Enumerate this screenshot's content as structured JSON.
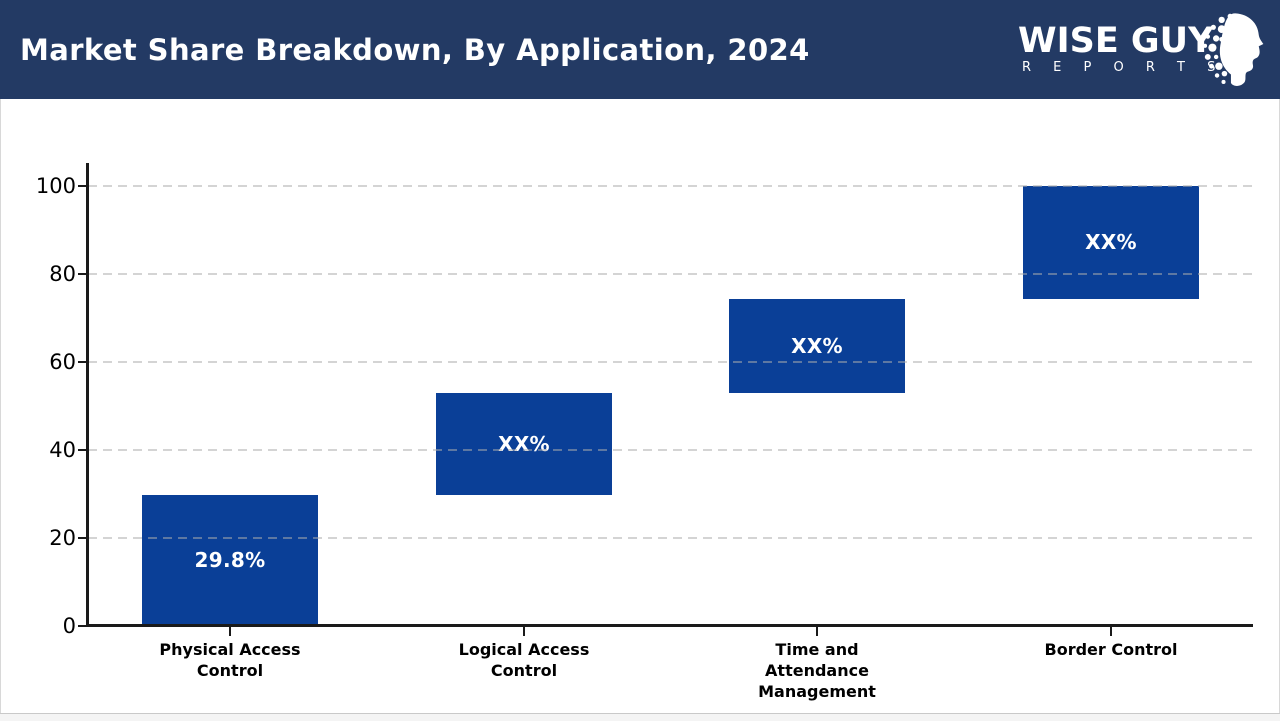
{
  "header": {
    "title": "Market Share Breakdown, By Application, 2024",
    "logo": {
      "line1": "WISE GUY",
      "line2": "R E P O R T S"
    }
  },
  "watermark": {
    "line1": "WISE GUY",
    "line2": "R E P O R T S"
  },
  "chart_data": {
    "type": "bar",
    "subtype": "waterfall",
    "title": "Market Share Breakdown, By Application, 2024",
    "categories": [
      "Physical Access\nControl",
      "Logical Access\nControl",
      "Time and\nAttendance\nManagement",
      "Border Control"
    ],
    "series": [
      {
        "name": "Market Share (%)",
        "segments": [
          {
            "category": "Physical Access Control",
            "start": 0,
            "end": 29.8,
            "value": 29.8,
            "label": "29.8%"
          },
          {
            "category": "Logical Access Control",
            "start": 29.8,
            "end": 53.0,
            "value": 23.2,
            "label": "XX%"
          },
          {
            "category": "Time and Attendance Management",
            "start": 53.0,
            "end": 74.4,
            "value": 21.4,
            "label": "XX%"
          },
          {
            "category": "Border Control",
            "start": 74.4,
            "end": 100,
            "value": 25.6,
            "label": "XX%"
          }
        ]
      }
    ],
    "xlabel": "",
    "ylabel": "",
    "ylim": [
      0,
      100
    ],
    "y_ticks": [
      0,
      20,
      40,
      60,
      80,
      100
    ],
    "grid": "horizontal-dashed",
    "legend": "none",
    "bar_color": "#0a3f97",
    "bar_label_color": "#ffffff"
  },
  "colors": {
    "header_bg": "#233a64",
    "bar": "#0a3f97",
    "axis": "#1a1a1a",
    "gridline": "#d9d9d9",
    "watermark": "#f1f1f3",
    "card_border": "#d8d8d8"
  }
}
